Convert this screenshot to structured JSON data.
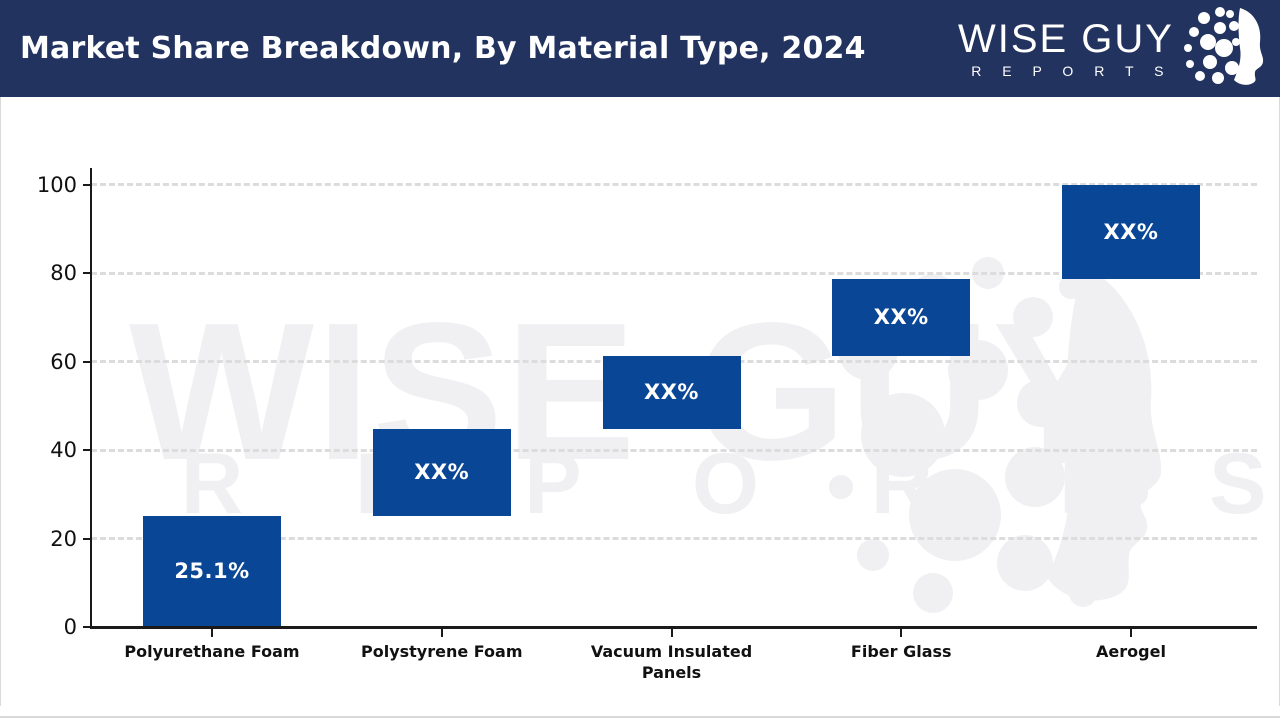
{
  "header": {
    "title": "Market Share Breakdown, By Material Type, 2024",
    "logo": {
      "line1": "WISE GUY",
      "line2": "R E P O R T S"
    }
  },
  "watermark": {
    "line1": "WISE GUY",
    "line2": "R E P O R T S"
  },
  "colors": {
    "header_bg": "#223360",
    "bar": "#0a4696",
    "grid": "#dcdcdc",
    "axis": "#1a1a1a",
    "watermark": "#f0f0f3",
    "bar_label": "#ffffff"
  },
  "chart_data": {
    "type": "bar",
    "subtype": "waterfall",
    "title": "Market Share Breakdown, By Material Type, 2024",
    "xlabel": "",
    "ylabel": "",
    "ylim": [
      0,
      100
    ],
    "yticks": [
      0,
      20,
      40,
      60,
      80,
      100
    ],
    "grid": "dashed-horizontal",
    "legend": "none",
    "categories": [
      "Polyurethane Foam",
      "Polystyrene Foam",
      "Vacuum Insulated Panels",
      "Fiber Glass",
      "Aerogel"
    ],
    "bars": [
      {
        "category": "Polyurethane Foam",
        "start": 0,
        "end": 25.1,
        "value": 25.1,
        "label": "25.1%"
      },
      {
        "category": "Polystyrene Foam",
        "start": 25.1,
        "end": 44.8,
        "value": 19.7,
        "label": "XX%"
      },
      {
        "category": "Vacuum Insulated Panels",
        "start": 44.8,
        "end": 61.2,
        "value": 16.4,
        "label": "XX%"
      },
      {
        "category": "Fiber Glass",
        "start": 61.2,
        "end": 78.7,
        "value": 17.5,
        "label": "XX%"
      },
      {
        "category": "Aerogel",
        "start": 78.7,
        "end": 100,
        "value": 21.3,
        "label": "XX%"
      }
    ]
  }
}
